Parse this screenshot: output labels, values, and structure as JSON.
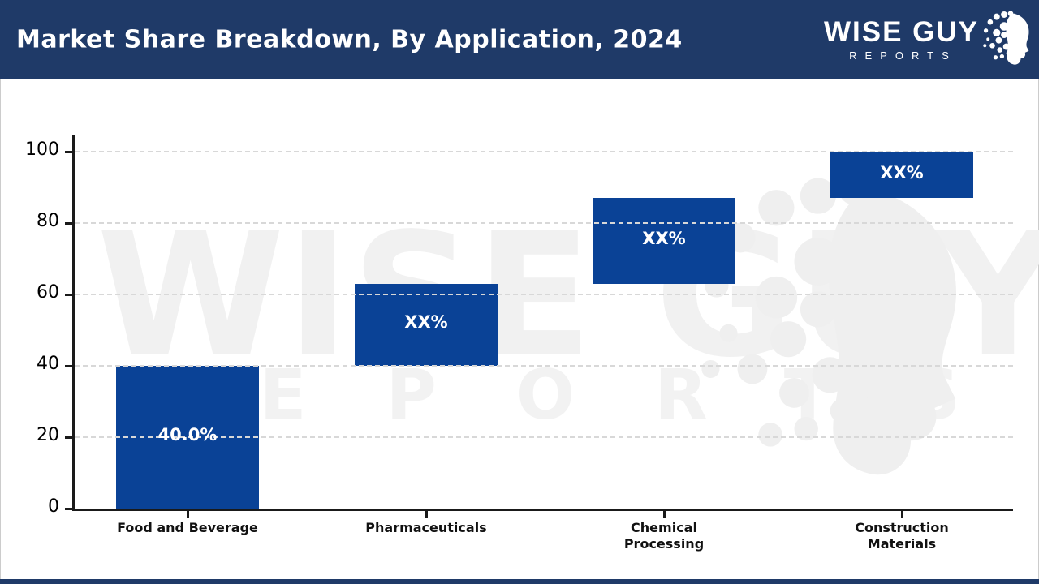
{
  "header": {
    "title": "Market Share Breakdown, By Application, 2024",
    "logo": {
      "line1": "WISE GUY",
      "line2": "REPORTS"
    }
  },
  "watermark": {
    "line1": "WISE GUY",
    "line2": "REPORTS"
  },
  "colors": {
    "header_bg": "#1f3a68",
    "bar": "#0a4296",
    "grid": "#d8d8d8",
    "axis": "#1a1a1a",
    "bar_label": "#ffffff",
    "watermark": "#f1f1f1"
  },
  "chart_data": {
    "type": "bar",
    "subtype": "waterfall",
    "title": "Market Share Breakdown, By Application, 2024",
    "categories": [
      "Food and Beverage",
      "Pharmaceuticals",
      "Chemical Processing",
      "Construction Materials"
    ],
    "series": [
      {
        "name": "Market Share",
        "segments": [
          {
            "category": "Food and Beverage",
            "start": 0,
            "end": 40,
            "label": "40.0%"
          },
          {
            "category": "Pharmaceuticals",
            "start": 40,
            "end": 63,
            "label": "XX%"
          },
          {
            "category": "Chemical Processing",
            "start": 63,
            "end": 87,
            "label": "XX%"
          },
          {
            "category": "Construction Materials",
            "start": 87,
            "end": 100,
            "label": "XX%"
          }
        ]
      }
    ],
    "xlabel": "",
    "ylabel": "",
    "ylim": [
      0,
      100
    ],
    "yticks": [
      0,
      20,
      40,
      60,
      80,
      100
    ],
    "grid": "horizontal-dashed",
    "legend": "none"
  }
}
